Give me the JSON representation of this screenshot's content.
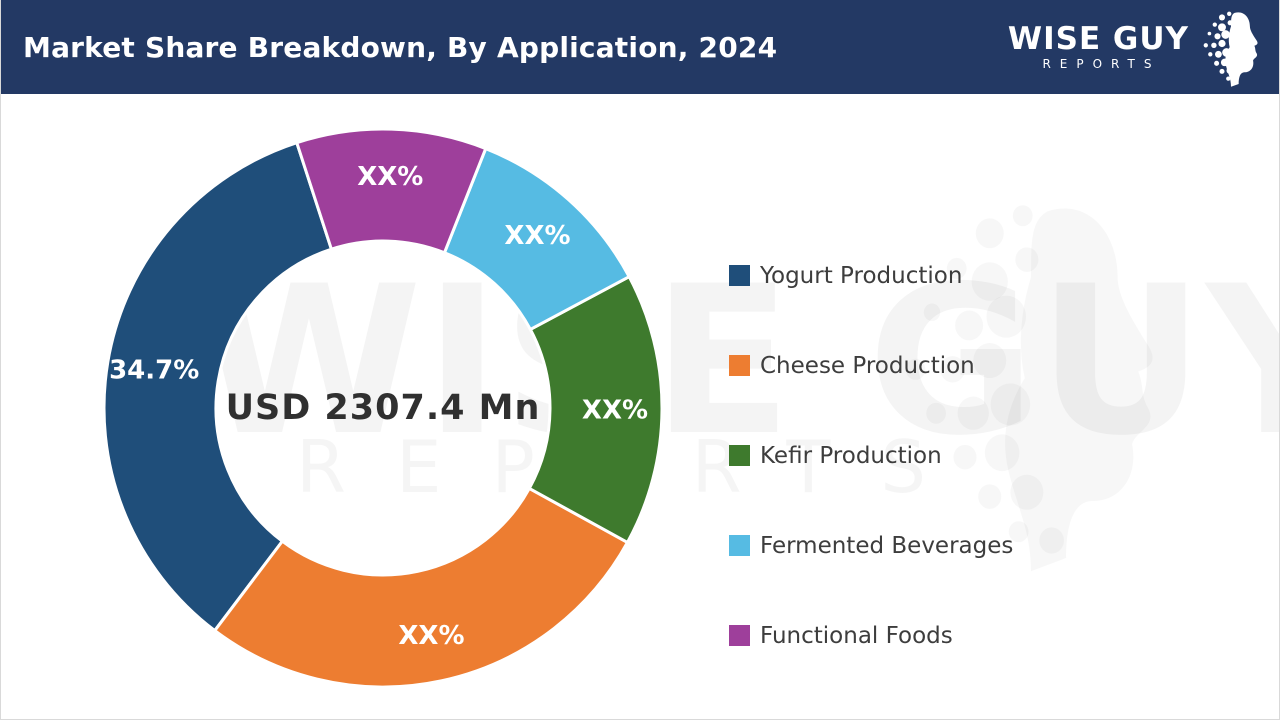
{
  "header": {
    "title": "Market Share Breakdown, By Application, 2024",
    "background_color": "#233964",
    "logo": {
      "line1": "WISE GUY",
      "line2": "REPORTS"
    }
  },
  "watermark": {
    "line1": "WISE GUY",
    "line2": "REPORTS"
  },
  "chart_data": {
    "type": "pie",
    "subtype": "donut",
    "title": "Market Share Breakdown, By Application, 2024",
    "center_label": "USD 2307.4 Mn",
    "rotation_deg": -18,
    "direction": "counterclockwise",
    "inner_radius_ratio": 0.6,
    "legend_position": "right",
    "slices": [
      {
        "label": "Yogurt Production",
        "value_pct": 34.7,
        "display": "34.7%",
        "color": "#1F4E7A"
      },
      {
        "label": "Cheese Production",
        "value_pct": 27.3,
        "display": "XX%",
        "color": "#ED7D31"
      },
      {
        "label": "Kefir Production",
        "value_pct": 15.8,
        "display": "XX%",
        "color": "#3E7A2D"
      },
      {
        "label": "Fermented Beverages",
        "value_pct": 11.2,
        "display": "XX%",
        "color": "#56BBE3"
      },
      {
        "label": "Functional Foods",
        "value_pct": 11.0,
        "display": "XX%",
        "color": "#9E3F9B"
      }
    ]
  }
}
